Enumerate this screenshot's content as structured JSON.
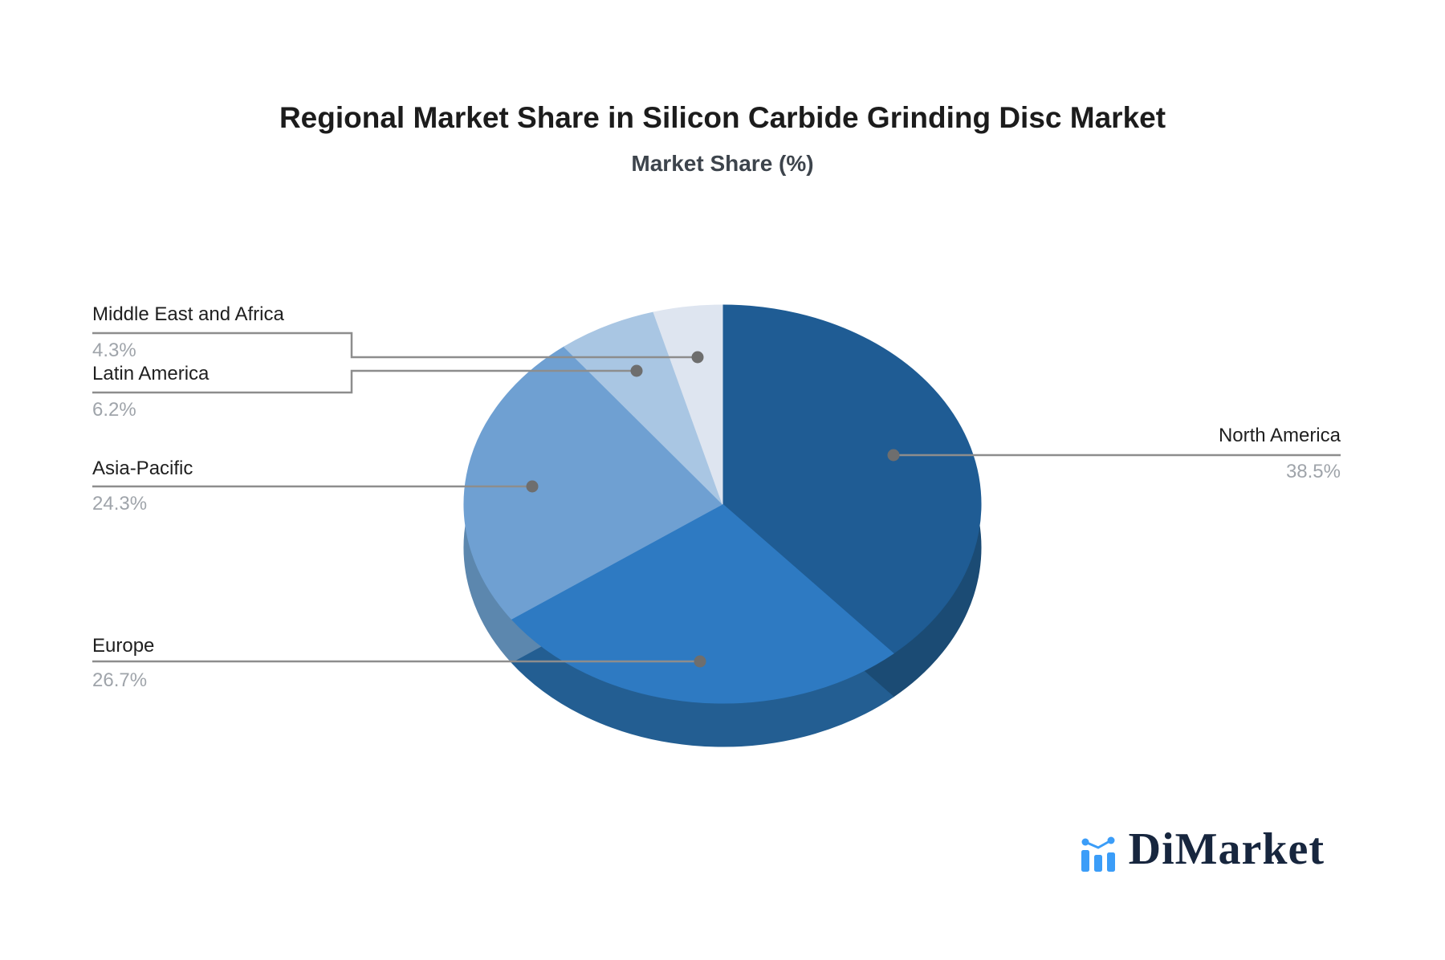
{
  "title": "Regional Market Share in Silicon Carbide Grinding Disc Market",
  "subtitle": "Market Share (%)",
  "logo": {
    "text": "DiMarket",
    "icon": "bar-line-chart-icon",
    "icon_color": "#3B9DF8",
    "text_color": "#17263E"
  },
  "colors": {
    "background": "#FFFFFF",
    "title_text": "#1C1C1C",
    "subtitle_text": "#3D444C",
    "label_text": "#1F1F1F",
    "value_text": "#9FA4AA",
    "connector_line": "#8D8D8D",
    "connector_dot": "#6E6E6E"
  },
  "chart_data": {
    "type": "pie",
    "title": "Regional Market Share in Silicon Carbide Grinding Disc Market",
    "subtitle": "Market Share (%)",
    "unit": "percent",
    "direction": "clockwise",
    "start_angle_deg": 0,
    "legend_position": "callout-labels",
    "style": "3d-ellipse",
    "slices": [
      {
        "label": "North America",
        "value": 38.5,
        "display": "38.5%",
        "color": "#1F5C94",
        "side_color": "#1B4B74"
      },
      {
        "label": "Europe",
        "value": 26.7,
        "display": "26.7%",
        "color": "#2E7AC2",
        "side_color": "#235E92"
      },
      {
        "label": "Asia-Pacific",
        "value": 24.3,
        "display": "24.3%",
        "color": "#6FA0D2",
        "side_color": "#5C87AE"
      },
      {
        "label": "Latin America",
        "value": 6.2,
        "display": "6.2%",
        "color": "#A9C6E3",
        "side_color": "#8FA9C4"
      },
      {
        "label": "Middle East and Africa",
        "value": 4.3,
        "display": "4.3%",
        "color": "#DEE5F0",
        "side_color": "#BFC9D6"
      }
    ]
  }
}
